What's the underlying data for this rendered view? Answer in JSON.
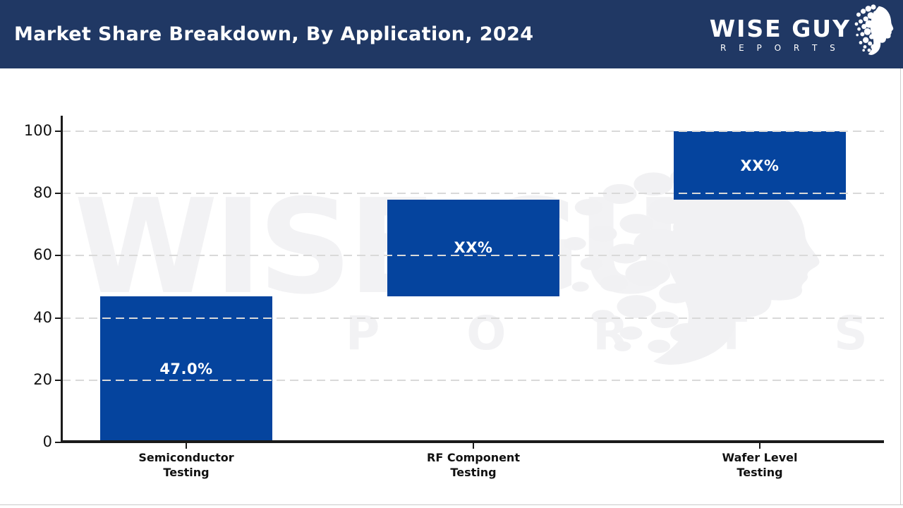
{
  "header": {
    "title": "Market Share Breakdown, By Application, 2024"
  },
  "brand": {
    "name": "WISE GUY",
    "sub": "R E P O R T S"
  },
  "watermark": {
    "line1": "WISE GUY",
    "line2": "R E P O R T S"
  },
  "colors": {
    "header_bg": "#203864",
    "bar": "#05449e",
    "gridline": "#d9d9d9",
    "axis": "#1a1a1a",
    "bar_label_text": "#ffffff",
    "watermark": "#f2f2f4"
  },
  "chart_data": {
    "type": "bar",
    "subtype": "waterfall",
    "title": "Market Share Breakdown, By Application, 2024",
    "xlabel": "",
    "ylabel": "",
    "ylim": [
      0,
      105
    ],
    "y_ticks": [
      0,
      20,
      40,
      60,
      80,
      100
    ],
    "grid": "horizontal dashed",
    "legend": "none",
    "categories": [
      [
        "Semiconductor",
        "Testing"
      ],
      [
        "RF Component",
        "Testing"
      ],
      [
        "Wafer Level",
        "Testing"
      ]
    ],
    "bars": [
      {
        "category": "Semiconductor Testing",
        "start": 0,
        "end": 47,
        "segment_value": 47,
        "label": "47.0%"
      },
      {
        "category": "RF Component Testing",
        "start": 47,
        "end": 78,
        "segment_value": 31,
        "label": "XX%"
      },
      {
        "category": "Wafer Level Testing",
        "start": 78,
        "end": 100,
        "segment_value": 22,
        "label": "XX%"
      }
    ]
  }
}
